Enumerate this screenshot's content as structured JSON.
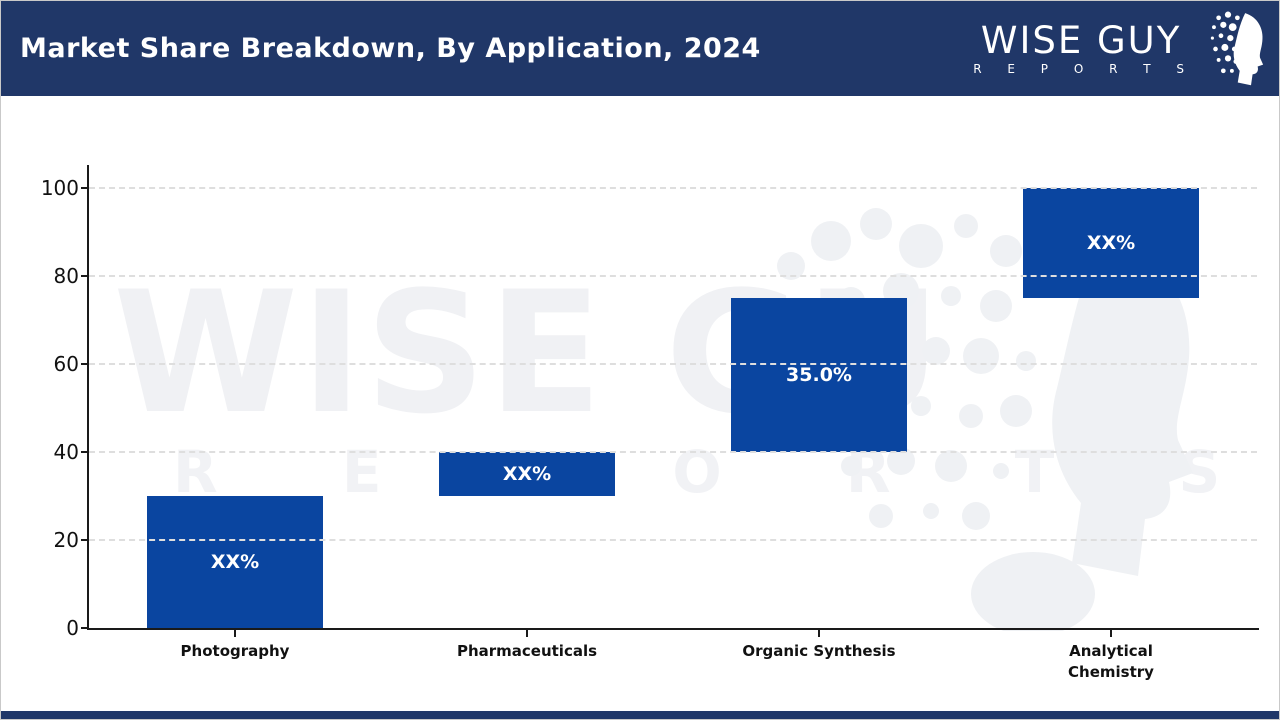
{
  "header": {
    "title": "Market Share Breakdown, By Application, 2024",
    "logo": {
      "wordmark": "WISE GUY",
      "sub": "R E P O R T S"
    }
  },
  "watermark": {
    "wordmark": "WISE GU",
    "sub": "R E P O R T S"
  },
  "chart_data": {
    "type": "bar",
    "variant": "waterfall",
    "title": "Market Share Breakdown, By Application, 2024",
    "categories": [
      "Photography",
      "Pharmaceuticals",
      "Organic Synthesis",
      "Analytical Chemistry"
    ],
    "categories_display": [
      [
        "Photography"
      ],
      [
        "Pharmaceuticals"
      ],
      [
        "Organic Synthesis"
      ],
      [
        "Analytical",
        "Chemistry"
      ]
    ],
    "segments": [
      {
        "category": "Photography",
        "start": 0,
        "end": 30,
        "label": "XX%"
      },
      {
        "category": "Pharmaceuticals",
        "start": 30,
        "end": 40,
        "label": "XX%"
      },
      {
        "category": "Organic Synthesis",
        "start": 40,
        "end": 75,
        "label": "35.0%"
      },
      {
        "category": "Analytical Chemistry",
        "start": 75,
        "end": 100,
        "label": "XX%"
      }
    ],
    "ylim": [
      0,
      100
    ],
    "yticks": [
      0,
      20,
      40,
      60,
      80,
      100
    ],
    "xlabel": "",
    "ylabel": "",
    "legend": "none",
    "grid": "horizontal-dashed",
    "bar_color": "#0a45a0",
    "bar_label_color": "#ffffff",
    "header_color": "#203768"
  }
}
